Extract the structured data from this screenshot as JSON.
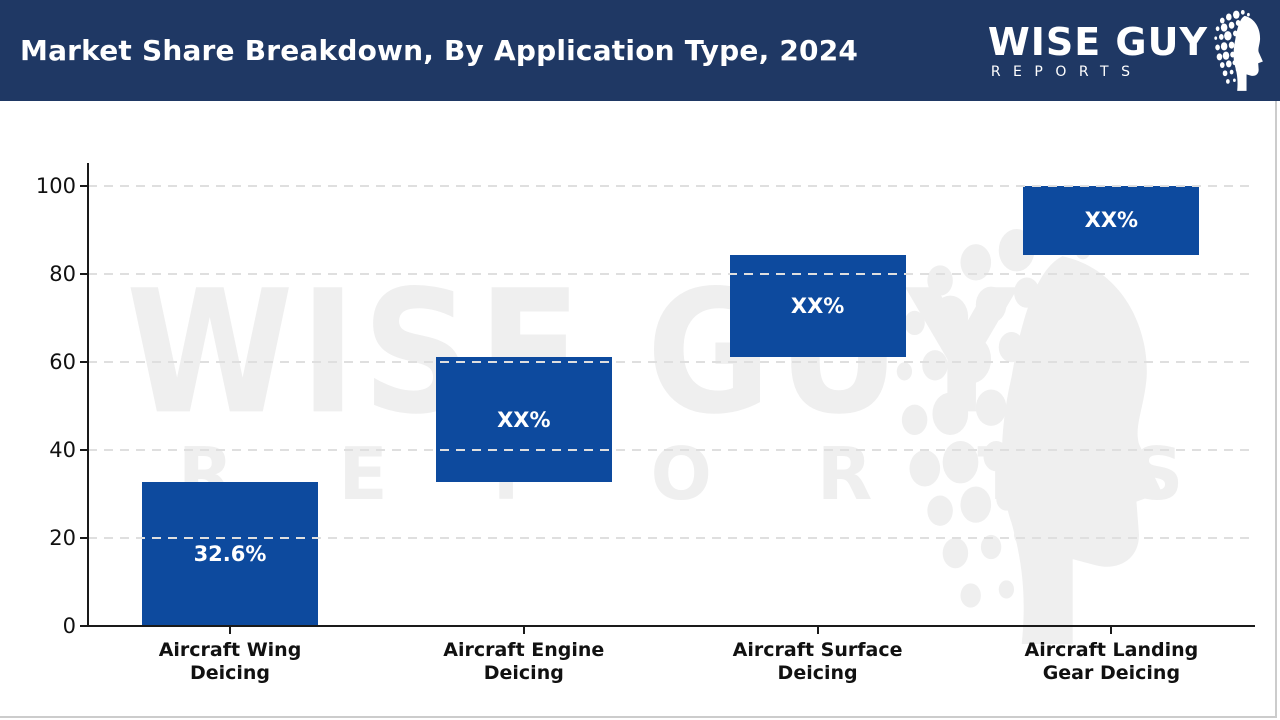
{
  "header": {
    "title": "Market Share Breakdown, By Application Type, 2024",
    "bg_color": "#1f3864",
    "logo": {
      "brand": "WISE GUY",
      "sub": "REPORTS"
    }
  },
  "watermark": {
    "line1": "WISE GUY",
    "line2": "R E P O R T S"
  },
  "chart_data": {
    "type": "bar",
    "variant": "stacked-waterfall",
    "title": "Market Share Breakdown, By Application Type, 2024",
    "categories": [
      "Aircraft Wing Deicing",
      "Aircraft Engine Deicing",
      "Aircraft Surface Deicing",
      "Aircraft Landing Gear Deicing"
    ],
    "bars": [
      {
        "category_lines": [
          "Aircraft Wing",
          "Deicing"
        ],
        "start": 0,
        "end": 32.6,
        "label": "32.6%"
      },
      {
        "category_lines": [
          "Aircraft Engine",
          "Deicing"
        ],
        "start": 32.6,
        "end": 61,
        "label": "XX%"
      },
      {
        "category_lines": [
          "Aircraft Surface",
          "Deicing"
        ],
        "start": 61,
        "end": 84.2,
        "label": "XX%"
      },
      {
        "category_lines": [
          "Aircraft Landing",
          "Gear Deicing"
        ],
        "start": 84.2,
        "end": 100,
        "label": "XX%"
      }
    ],
    "ylim": [
      0,
      100
    ],
    "yticks": [
      0,
      20,
      40,
      60,
      80,
      100
    ],
    "xlabel": "",
    "ylabel": "",
    "bar_color": "#0d4a9e",
    "grid": {
      "axis": "y",
      "style": "dashed",
      "color": "#dfdfdf",
      "drawn_above_bars": true
    },
    "legend": null
  }
}
